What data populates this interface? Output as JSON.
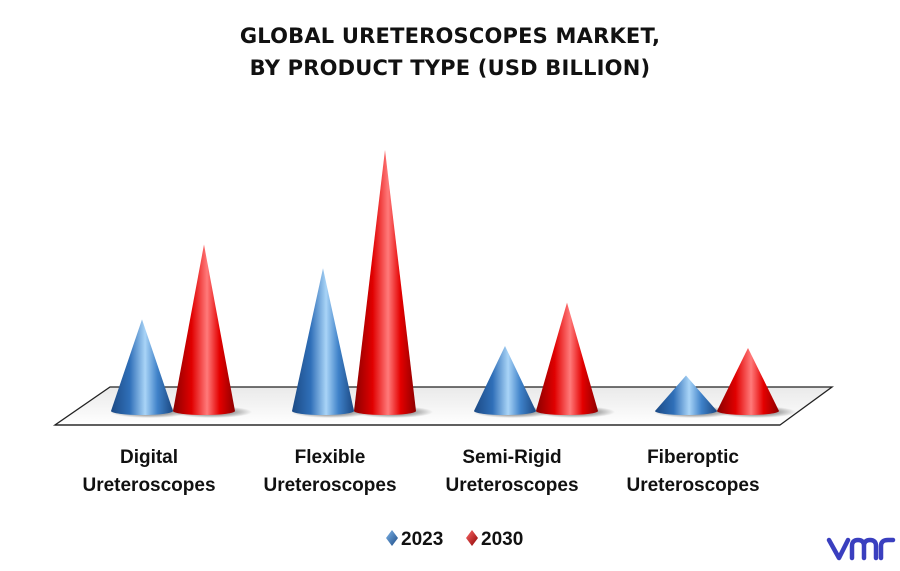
{
  "title_lines": [
    "GLOBAL URETEROSCOPES MARKET,",
    "BY PRODUCT TYPE (USD BILLION)"
  ],
  "colors": {
    "2023_base": "#2f6fb8",
    "2030_base": "#e00000",
    "logo": "#3a3fbf"
  },
  "logo_icon": "vmr-logo-icon",
  "chart_data": {
    "type": "bar",
    "style": "3d-cone",
    "title": "GLOBAL URETEROSCOPES MARKET, BY PRODUCT TYPE (USD BILLION)",
    "xlabel": "",
    "ylabel": "",
    "categories": [
      "Digital Ureteroscopes",
      "Flexible Ureteroscopes",
      "Semi-Rigid Ureteroscopes",
      "Fiberoptic Ureteroscopes"
    ],
    "category_lines": [
      [
        "Digital",
        "Ureteroscopes"
      ],
      [
        "Flexible",
        "Ureteroscopes"
      ],
      [
        "Semi-Rigid",
        "Ureteroscopes"
      ],
      [
        "Fiberoptic",
        "Ureteroscopes"
      ]
    ],
    "series": [
      {
        "name": "2023",
        "values": [
          0.93,
          1.45,
          0.66,
          0.36
        ]
      },
      {
        "name": "2030",
        "values": [
          1.69,
          2.65,
          1.1,
          0.64
        ]
      }
    ],
    "ylim": [
      0,
      2.65
    ],
    "grid": false,
    "y_axis_visible": false,
    "legend_position": "bottom"
  }
}
